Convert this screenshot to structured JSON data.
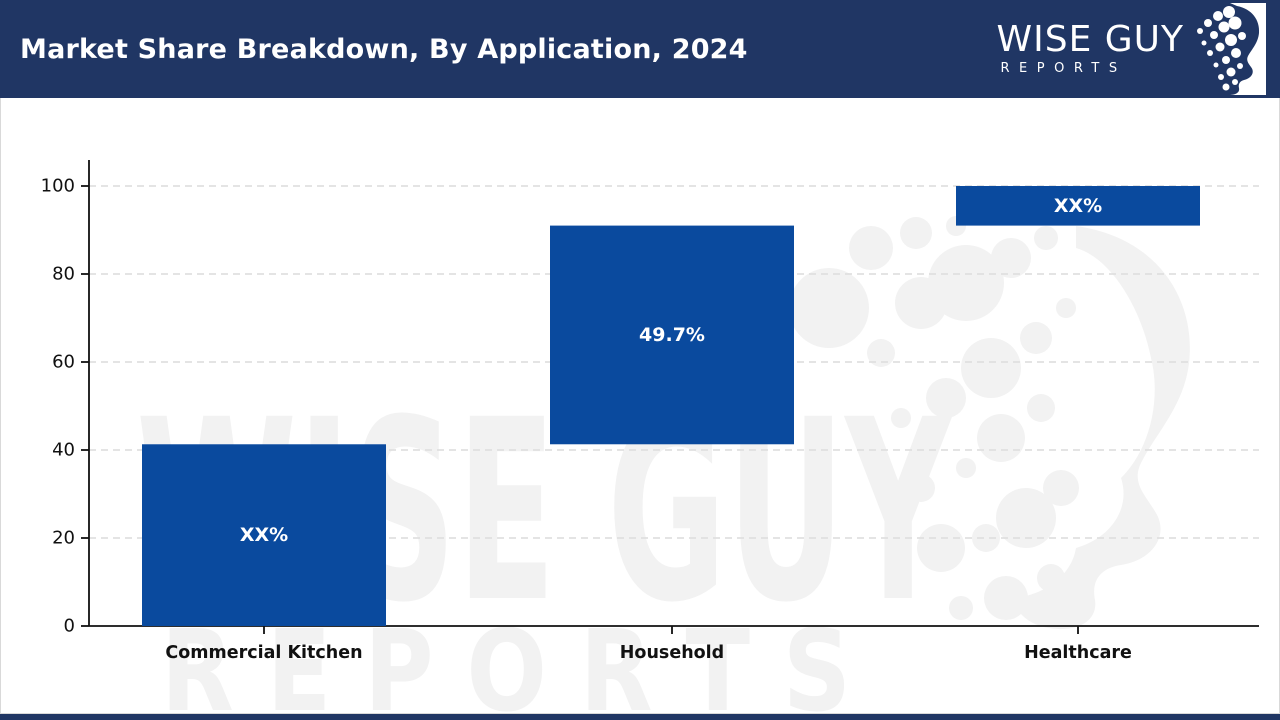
{
  "header": {
    "title": "Market Share Breakdown, By Application, 2024",
    "logo": {
      "line1": "WISE GUY",
      "line2": "REPORTS"
    }
  },
  "watermark": {
    "line1": "WISE GUY",
    "line2": "REPORTS"
  },
  "chart_data": {
    "type": "bar",
    "subtype": "stacked-waterfall",
    "title": "Market Share Breakdown, By Application, 2024",
    "categories": [
      "Commercial Kitchen",
      "Household",
      "Healthcare"
    ],
    "starts": [
      0,
      41.3,
      91.0
    ],
    "values": [
      41.3,
      49.7,
      9.0
    ],
    "bar_labels": [
      "XX%",
      "49.7%",
      "XX%"
    ],
    "xlabel": "",
    "ylabel": "",
    "ylim": [
      0,
      100
    ],
    "yticks": [
      0,
      20,
      40,
      60,
      80,
      100
    ],
    "grid": true,
    "grid_style": "dashed",
    "legend": false,
    "bar_color": "#0a4a9e",
    "bar_label_color": "#ffffff",
    "axis_color": "#111111",
    "grid_color": "#dcdcdc"
  },
  "colors": {
    "header_bg": "#203664",
    "footer_bg": "#203664",
    "watermark": "#f2f2f2"
  }
}
